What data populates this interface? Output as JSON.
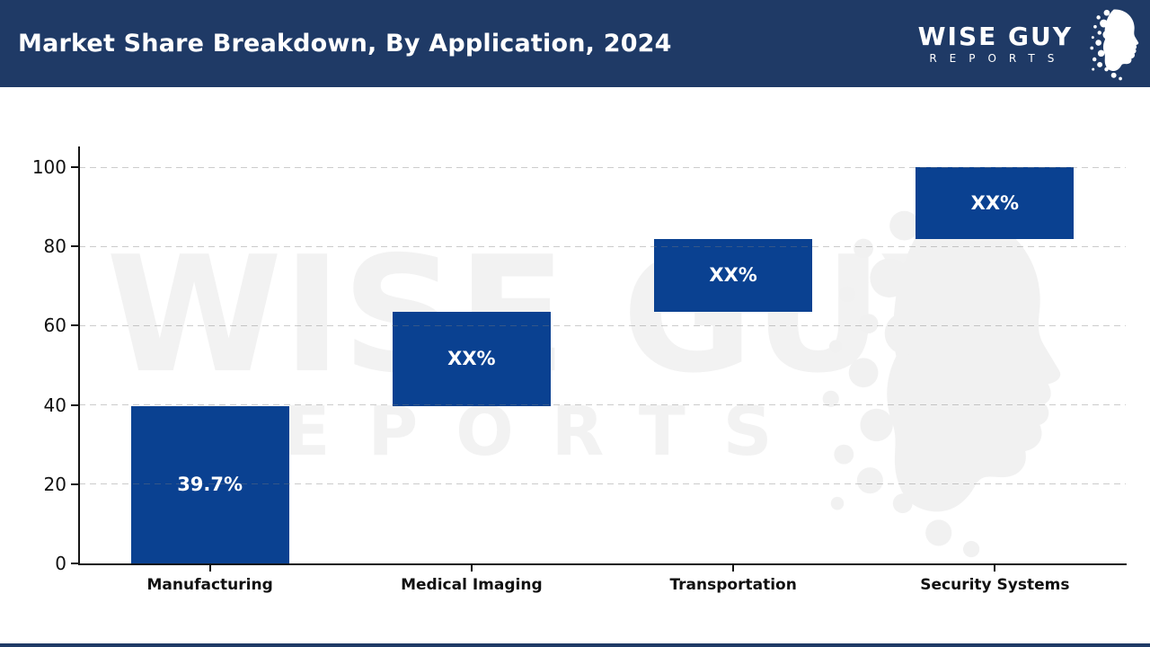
{
  "header": {
    "title": "Market Share Breakdown, By Application, 2024",
    "bg_color": "#1f3a66",
    "logo": {
      "name": "WISE GUY",
      "tagline": "REPORTS"
    }
  },
  "watermark": {
    "line1": "WISE GUY",
    "line2": "REPORTS"
  },
  "chart_data": {
    "type": "bar",
    "subtype": "waterfall",
    "title": "Market Share Breakdown, By Application, 2024",
    "categories": [
      "Manufacturing",
      "Medical Imaging",
      "Transportation",
      "Security Systems"
    ],
    "segments": [
      {
        "category": "Manufacturing",
        "label": "39.7%",
        "start": 0,
        "end": 39.7
      },
      {
        "category": "Medical Imaging",
        "label": "XX%",
        "start": 39.7,
        "end": 63.5
      },
      {
        "category": "Transportation",
        "label": "XX%",
        "start": 63.5,
        "end": 81.9
      },
      {
        "category": "Security Systems",
        "label": "XX%",
        "start": 81.9,
        "end": 100
      }
    ],
    "y_ticks": [
      0,
      20,
      40,
      60,
      80,
      100
    ],
    "ylim": [
      0,
      105
    ],
    "xlabel": "",
    "ylabel": "",
    "grid": true,
    "grid_style": "dashed",
    "legend": false,
    "bar_color": "#0a4191",
    "bar_label_color": "#ffffff",
    "axis_color": "#141414"
  }
}
